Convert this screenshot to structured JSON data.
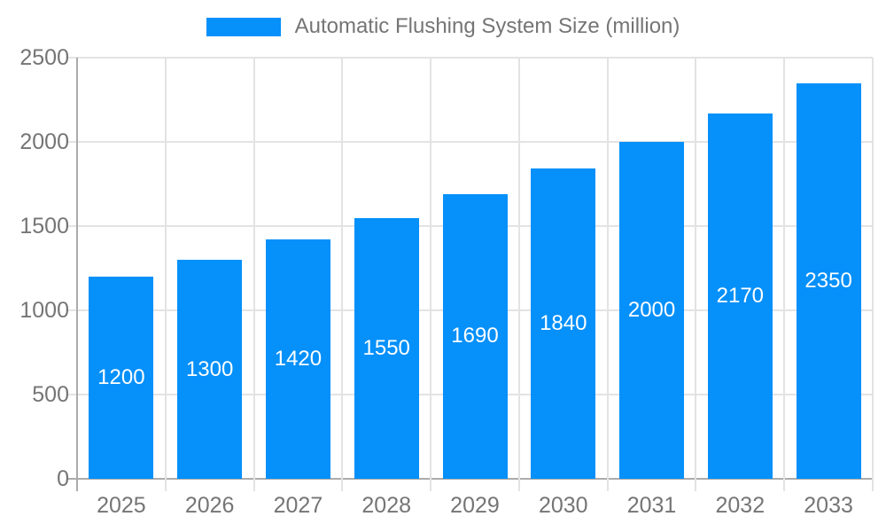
{
  "chart_data": {
    "type": "bar",
    "categories": [
      "2025",
      "2026",
      "2027",
      "2028",
      "2029",
      "2030",
      "2031",
      "2032",
      "2033"
    ],
    "series": [
      {
        "name": "Automatic Flushing System Size (million)",
        "values": [
          1200,
          1300,
          1420,
          1550,
          1690,
          1840,
          2000,
          2170,
          2350
        ]
      }
    ],
    "legend": {
      "position": "top",
      "label": "Automatic Flushing System Size (million)"
    },
    "ylim": [
      0,
      2500
    ],
    "yticks": [
      0,
      500,
      1000,
      1500,
      2000,
      2500
    ],
    "grid": true,
    "value_labels": {
      "position": "inside-center"
    },
    "colors": {
      "bar": "#0590fa",
      "value_label": "#ffffff",
      "tick_label": "#757575",
      "grid_line": "#e3e3e3",
      "axis_line": "#ababab",
      "background": "#ffffff"
    }
  }
}
